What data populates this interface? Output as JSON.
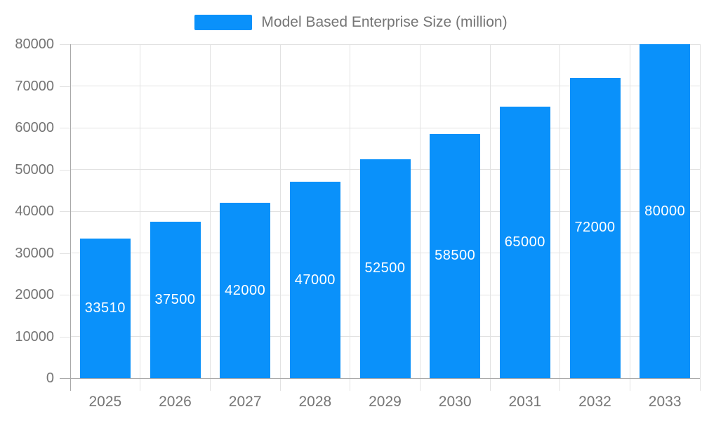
{
  "legend": {
    "label": "Model Based Enterprise Size (million)"
  },
  "chart_data": {
    "type": "bar",
    "title": "Model Based Enterprise Size (million)",
    "series_name": "Model Based Enterprise Size (million)",
    "categories": [
      "2025",
      "2026",
      "2027",
      "2028",
      "2029",
      "2030",
      "2031",
      "2032",
      "2033"
    ],
    "values": [
      33510,
      37500,
      42000,
      47000,
      52500,
      58500,
      65000,
      72000,
      80000
    ],
    "bar_labels": [
      "33510",
      "37500",
      "42000",
      "47000",
      "52500",
      "58500",
      "65000",
      "72000",
      "80000"
    ],
    "xlabel": "",
    "ylabel": "",
    "ylim": [
      0,
      80000
    ],
    "yticks": [
      0,
      10000,
      20000,
      30000,
      40000,
      50000,
      60000,
      70000,
      80000
    ],
    "ytick_labels": [
      "0",
      "10000",
      "20000",
      "30000",
      "40000",
      "50000",
      "60000",
      "70000",
      "80000"
    ],
    "grid": true,
    "legend_position": "top",
    "colors": {
      "bar": "#0A91FA",
      "bar_label": "#FFFFFF",
      "axis_text": "#757575",
      "legend_text": "#757575",
      "grid_line": "#E2E2E2",
      "axis_line": "#A9A9A9",
      "background": "#FFFFFF"
    }
  }
}
